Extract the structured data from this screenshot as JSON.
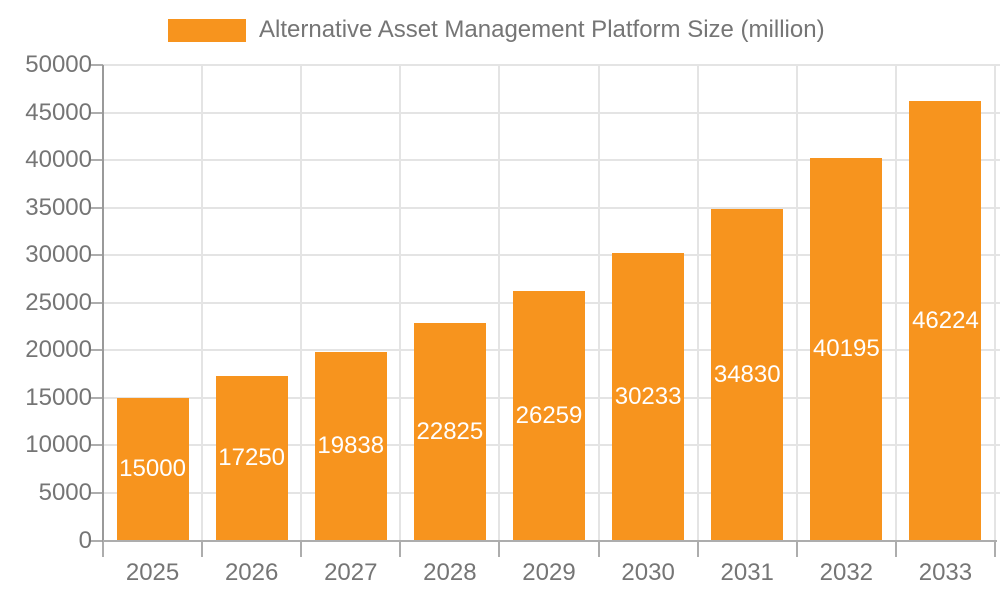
{
  "chart_data": {
    "type": "bar",
    "title": "Alternative Asset Management Platform Size (million)",
    "categories": [
      "2025",
      "2026",
      "2027",
      "2028",
      "2029",
      "2030",
      "2031",
      "2032",
      "2033"
    ],
    "values": [
      15000,
      17250,
      19838,
      22825,
      26259,
      30233,
      34830,
      40195,
      46224
    ],
    "xlabel": "",
    "ylabel": "",
    "ylim": [
      0,
      50000
    ],
    "ytick_step": 5000,
    "yticks": [
      0,
      5000,
      10000,
      15000,
      20000,
      25000,
      30000,
      35000,
      40000,
      45000,
      50000
    ],
    "grid": true,
    "grid_vertical": true,
    "bar_labels": true,
    "legend_position": "top",
    "colors": {
      "bar": "#F7941E",
      "bar_label": "#FFFFFF",
      "grid": "#E4E4E4",
      "axis_y": "#9A9A9A",
      "axis_x": "#ADADAD",
      "tick": "#ADADAD",
      "text": "#757575",
      "background": "#FFFFFF"
    }
  }
}
